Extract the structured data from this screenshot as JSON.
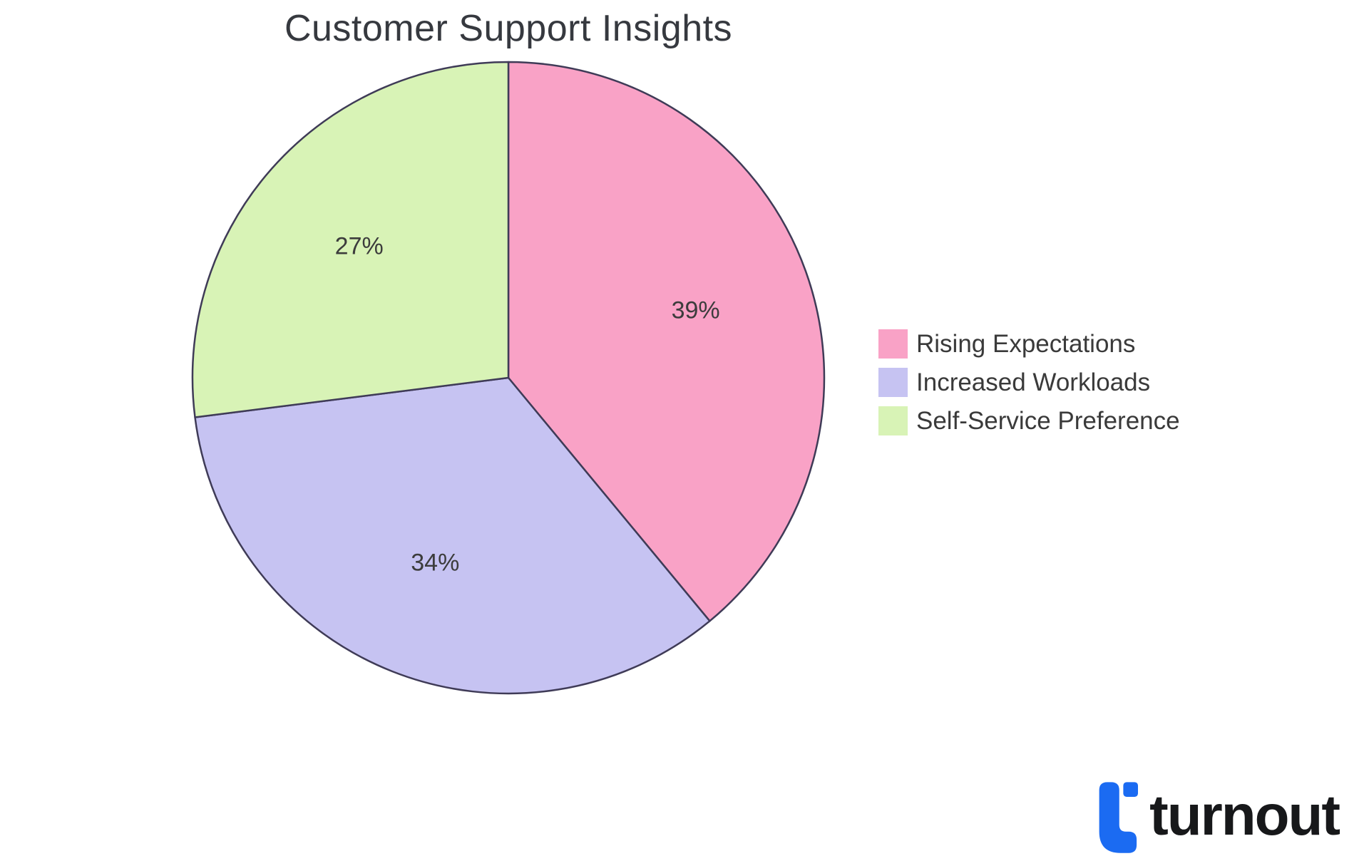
{
  "chart_data": {
    "type": "pie",
    "title": "Customer Support Insights",
    "labels": [
      "Rising Expectations",
      "Increased Workloads",
      "Self-Service Preference"
    ],
    "values": [
      39,
      34,
      27
    ],
    "slice_labels": [
      "39%",
      "34%",
      "27%"
    ],
    "colors": [
      "#F9A2C6",
      "#C6C3F2",
      "#D8F3B6"
    ],
    "stroke_color": "#3F3B57",
    "start_angle": "top",
    "direction": "clockwise",
    "legend_position": "right",
    "slice_label_format": "percent"
  },
  "legend": {
    "items": [
      {
        "label": "Rising Expectations",
        "color": "#F9A2C6"
      },
      {
        "label": "Increased Workloads",
        "color": "#C6C3F2"
      },
      {
        "label": "Self-Service Preference",
        "color": "#D8F3B6"
      }
    ]
  },
  "logo": {
    "brand": "turnout",
    "accent_color": "#1B6BF2"
  }
}
